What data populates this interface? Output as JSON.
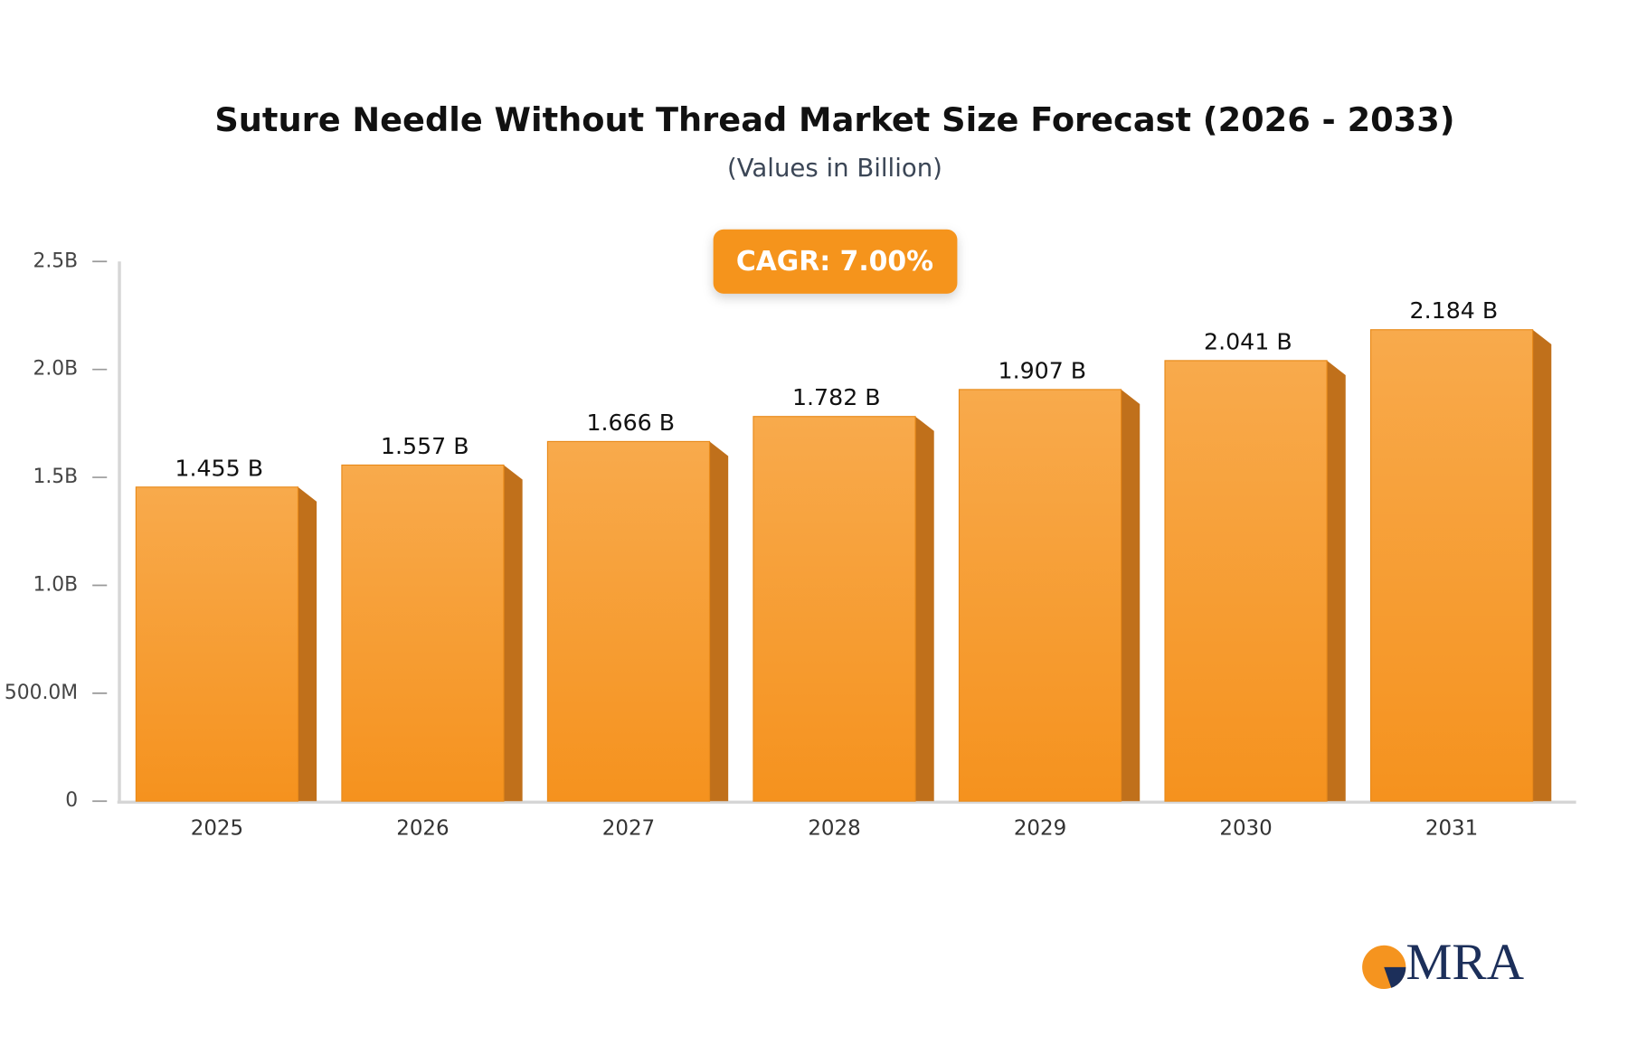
{
  "chart_data": {
    "type": "bar3d",
    "title": "Suture Needle Without Thread Market Size Forecast (2026 - 2033)",
    "subtitle": "(Values in Billion)",
    "annotation": "CAGR: 7.00%",
    "logo": "MRA",
    "categories": [
      "2025",
      "2026",
      "2027",
      "2028",
      "2029",
      "2030",
      "2031"
    ],
    "values": [
      1.455,
      1.557,
      1.666,
      1.782,
      1.907,
      2.041,
      2.184
    ],
    "value_labels": [
      "1.455 B",
      "1.557 B",
      "1.666 B",
      "1.782 B",
      "1.907 B",
      "2.041 B",
      "2.184 B"
    ],
    "color": "#f5941f",
    "ylim": [
      0,
      2.5
    ],
    "yticks": [
      0,
      {
        "value": 0.5,
        "label": "500.0M"
      },
      {
        "value": 1.0,
        "label": "1.0B"
      },
      {
        "value": 1.5,
        "label": "1.5B"
      },
      {
        "value": 2.0,
        "label": "2.0B"
      },
      {
        "value": 2.5,
        "label": "2.5B"
      }
    ],
    "grid": false
  }
}
